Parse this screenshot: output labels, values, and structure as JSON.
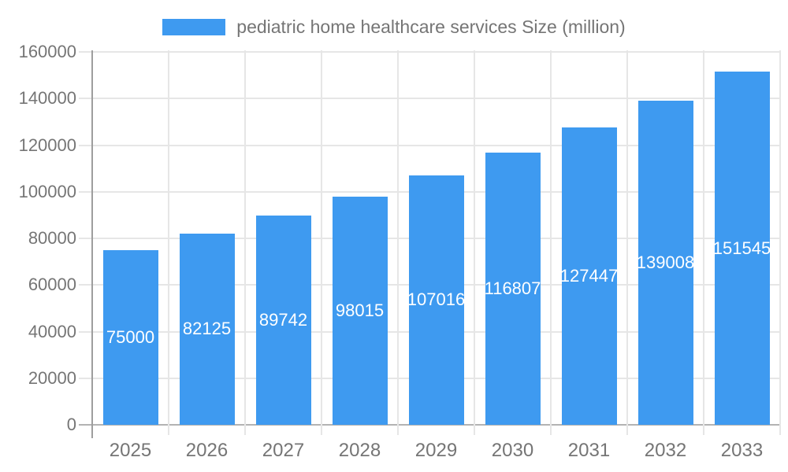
{
  "legend": {
    "label": "pediatric home healthcare services Size (million)"
  },
  "chart_data": {
    "type": "bar",
    "title": "pediatric home healthcare services Size (million)",
    "categories": [
      "2025",
      "2026",
      "2027",
      "2028",
      "2029",
      "2030",
      "2031",
      "2032",
      "2033"
    ],
    "values": [
      75000,
      82125,
      89742,
      98015,
      107016,
      116807,
      127447,
      139008,
      151545
    ],
    "bar_labels": [
      "75000",
      "82125",
      "89742",
      "98015",
      "107016",
      "116807",
      "127447",
      "139008",
      "151545"
    ],
    "xlabel": "",
    "ylabel": "",
    "ylim": [
      0,
      160000
    ],
    "ytick_step": 20000,
    "ytick_labels": [
      "0",
      "20000",
      "40000",
      "60000",
      "80000",
      "100000",
      "120000",
      "140000",
      "160000"
    ],
    "grid": true,
    "legend_position": "top",
    "colors": {
      "bar": "#3E9AF0",
      "gridline": "#E6E6E6",
      "axis_line": "#9E9E9E",
      "baseline": "#B3B3B3",
      "tick_text": "#757575",
      "bar_label_text": "#FFFFFF",
      "background": "#FFFFFF"
    }
  }
}
